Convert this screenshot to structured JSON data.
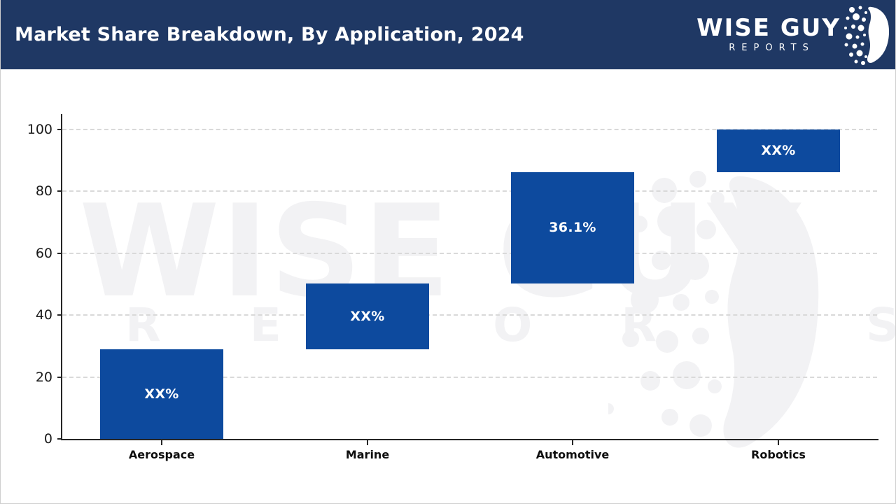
{
  "header": {
    "title": "Market Share Breakdown, By Application, 2024",
    "logo": {
      "line1": "WISE GUY",
      "line2": "REPORTS"
    }
  },
  "watermark": {
    "line1": "WISE GUY",
    "line2": "REPORTS"
  },
  "colors": {
    "header_bg": "#1f3864",
    "bar": "#0d4a9e",
    "grid": "#d9d9d9",
    "axis": "#262626",
    "title_text": "#ffffff",
    "bar_label_text": "#ffffff",
    "watermark": "#f2f2f4"
  },
  "chart_data": {
    "type": "bar",
    "variant": "waterfall",
    "title": "Market Share Breakdown, By Application, 2024",
    "categories": [
      "Aerospace",
      "Marine",
      "Automotive",
      "Robotics"
    ],
    "segments": [
      [
        0,
        28.9
      ],
      [
        28.9,
        50.2
      ],
      [
        50.2,
        86.3
      ],
      [
        86.3,
        100
      ]
    ],
    "values": [
      28.9,
      21.3,
      36.1,
      13.7
    ],
    "bar_labels": [
      "XX%",
      "XX%",
      "36.1%",
      "XX%"
    ],
    "xlabel": "",
    "ylabel": "",
    "ylim": [
      0,
      100
    ],
    "yticks": [
      0,
      20,
      40,
      60,
      80,
      100
    ],
    "grid": "horizontal-dashed",
    "legend": "none"
  }
}
